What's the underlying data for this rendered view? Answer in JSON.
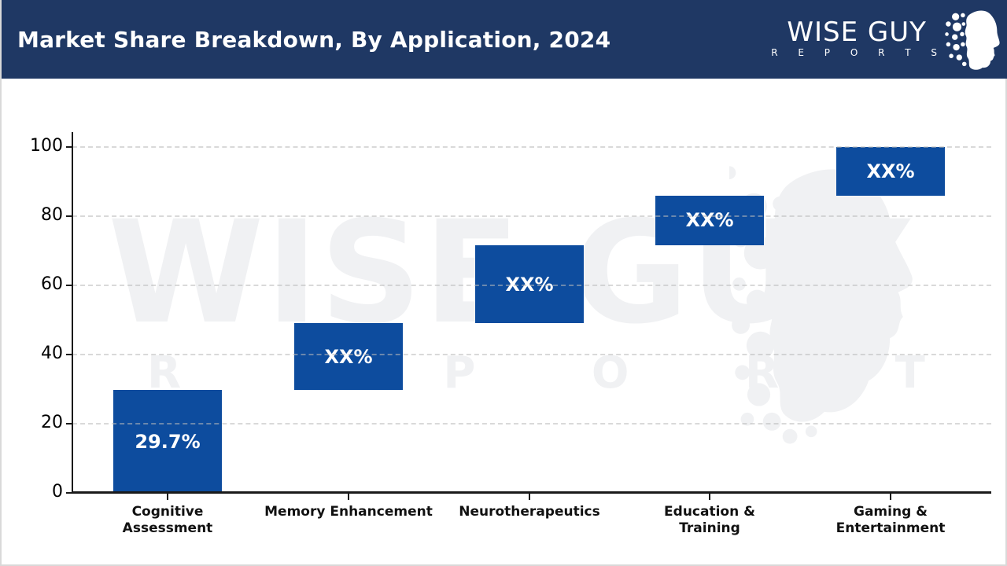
{
  "header": {
    "title": "Market Share Breakdown, By Application, 2024",
    "logo": {
      "name": "WISE GUY",
      "tagline": "R E P O R T S"
    }
  },
  "watermark": {
    "line1": "WISE GUY",
    "line2": "R E P O R T S"
  },
  "colors": {
    "header_bg": "#1f3864",
    "bar": "#0d4c9e",
    "axis": "#1a1a1a",
    "grid": "#bdbdbd",
    "watermark": "#f0f1f3",
    "bar_label": "#ffffff"
  },
  "chart_data": {
    "type": "bar",
    "variant": "waterfall",
    "title": "Market Share Breakdown, By Application, 2024",
    "xlabel": "",
    "ylabel": "",
    "ylim": [
      0,
      104
    ],
    "yticks": [
      0,
      20,
      40,
      60,
      80,
      100
    ],
    "grid": "horizontal-dashed",
    "legend": false,
    "bar_color": "#0d4c9e",
    "categories": [
      [
        "Cognitive",
        "Assessment"
      ],
      [
        "Memory Enhancement"
      ],
      [
        "Neurotherapeutics"
      ],
      [
        "Education &",
        "Training"
      ],
      [
        "Gaming &",
        "Entertainment"
      ]
    ],
    "segments": [
      {
        "category": "Cognitive Assessment",
        "start": 0,
        "end": 29.7,
        "label": "29.7%"
      },
      {
        "category": "Memory Enhancement",
        "start": 29.7,
        "end": 49,
        "label": "XX%"
      },
      {
        "category": "Neurotherapeutics",
        "start": 49,
        "end": 71.5,
        "label": "XX%"
      },
      {
        "category": "Education & Training",
        "start": 71.5,
        "end": 86,
        "label": "XX%"
      },
      {
        "category": "Gaming & Entertainment",
        "start": 86,
        "end": 100,
        "label": "XX%"
      }
    ]
  }
}
